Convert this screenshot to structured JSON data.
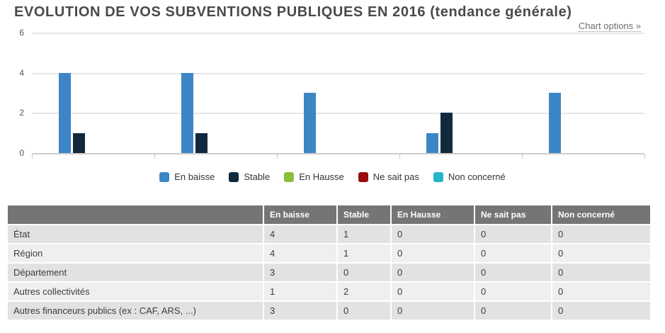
{
  "title": "EVOLUTION DE VOS SUBVENTIONS PUBLIQUES EN 2016 (tendance générale)",
  "chart_options_label": "Chart options »",
  "colors": {
    "en_baisse": "#3d86c6",
    "stable": "#12283c",
    "en_hausse": "#8cbe3c",
    "ne_sait_pas": "#9b0c0f",
    "non_concerne": "#28b4c8",
    "table_header_bg": "#757575",
    "table_row_dark": "#e2e2e2",
    "table_row_light": "#efefef"
  },
  "chart_data": {
    "type": "bar",
    "title": "EVOLUTION DE VOS SUBVENTIONS PUBLIQUES EN 2016 (tendance générale)",
    "categories": [
      "État",
      "Région",
      "Département",
      "Autres collectivités",
      "Autres financeurs publics (ex : CAF, ARS, ...)"
    ],
    "series": [
      {
        "name": "En baisse",
        "color": "#3d86c6",
        "values": [
          4,
          4,
          3,
          1,
          3
        ]
      },
      {
        "name": "Stable",
        "color": "#12283c",
        "values": [
          1,
          1,
          0,
          2,
          0
        ]
      },
      {
        "name": "En Hausse",
        "color": "#8cbe3c",
        "values": [
          0,
          0,
          0,
          0,
          0
        ]
      },
      {
        "name": "Ne sait pas",
        "color": "#9b0c0f",
        "values": [
          0,
          0,
          0,
          0,
          0
        ]
      },
      {
        "name": "Non concerné",
        "color": "#28b4c8",
        "values": [
          0,
          0,
          0,
          0,
          0
        ]
      }
    ],
    "xlabel": "",
    "ylabel": "",
    "ylim": [
      0,
      6
    ],
    "yticks": [
      0,
      2,
      4,
      6
    ],
    "grid": true,
    "legend_position": "bottom"
  },
  "table": {
    "headers": [
      "",
      "En baisse",
      "Stable",
      "En Hausse",
      "Ne sait pas",
      "Non concerné"
    ],
    "rows": [
      {
        "label": "État",
        "values": [
          4,
          1,
          0,
          0,
          0
        ]
      },
      {
        "label": "Région",
        "values": [
          4,
          1,
          0,
          0,
          0
        ]
      },
      {
        "label": "Département",
        "values": [
          3,
          0,
          0,
          0,
          0
        ]
      },
      {
        "label": "Autres collectivités",
        "values": [
          1,
          2,
          0,
          0,
          0
        ]
      },
      {
        "label": "Autres financeurs publics (ex : CAF, ARS, ...)",
        "values": [
          3,
          0,
          0,
          0,
          0
        ]
      }
    ]
  }
}
